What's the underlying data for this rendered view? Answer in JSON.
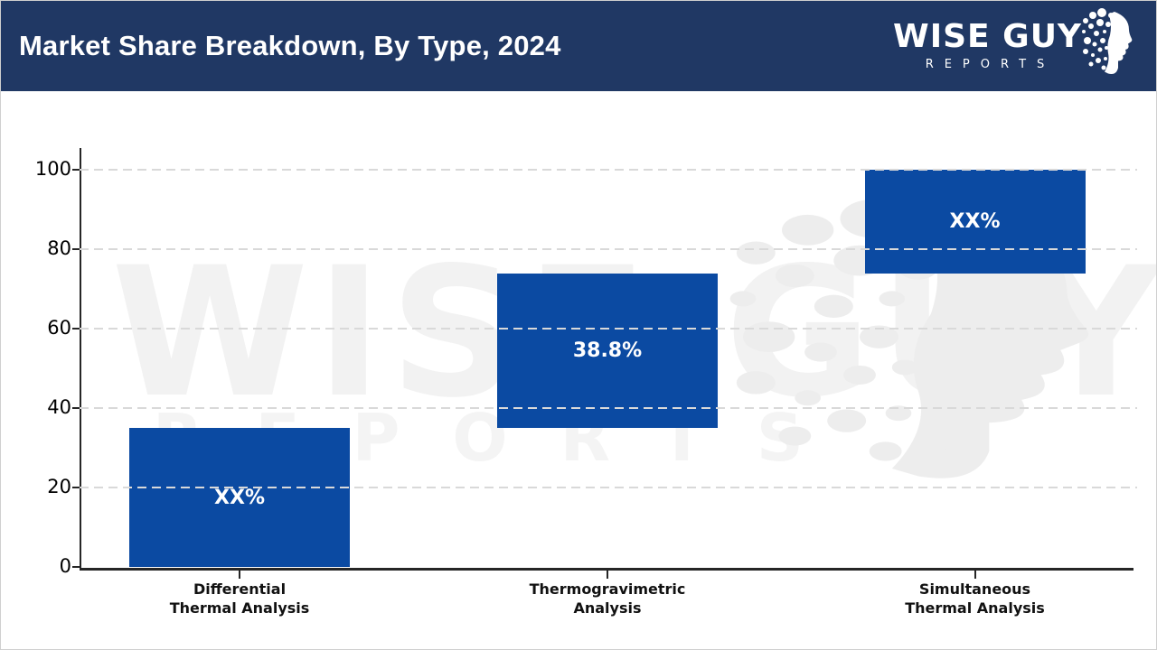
{
  "header": {
    "title": "Market Share Breakdown, By Type, 2024",
    "logo": {
      "line1": "WISE GUY",
      "line2": "REPORTS"
    }
  },
  "watermark": {
    "line1": "WISE GUY",
    "line2": "REPORTS"
  },
  "colors": {
    "header_bg": "#203864",
    "bar": "#0b4aa2",
    "grid": "#d9d9d9",
    "axis": "#262626",
    "bar_label_text": "#ffffff",
    "category_text": "#111111",
    "watermark_text": "#f2f2f2"
  },
  "chart_data": {
    "type": "bar",
    "subtype": "floating-waterfall",
    "title": "Market Share Breakdown, By Type, 2024",
    "categories": [
      [
        "Differential",
        "Thermal Analysis"
      ],
      [
        "Thermogravimetric",
        "Analysis"
      ],
      [
        "Simultaneous",
        "Thermal Analysis"
      ]
    ],
    "series": [
      {
        "name": "Market Share (%)",
        "segments": [
          {
            "start": 0,
            "end": 35,
            "label": "XX%"
          },
          {
            "start": 35,
            "end": 73.8,
            "label": "38.8%"
          },
          {
            "start": 73.8,
            "end": 100,
            "label": "XX%"
          }
        ]
      }
    ],
    "yticks": [
      0,
      20,
      40,
      60,
      80,
      100
    ],
    "ylim": [
      0,
      100
    ],
    "xlabel": "",
    "ylabel": "",
    "grid": "dashed-horizontal",
    "legend": "none"
  }
}
